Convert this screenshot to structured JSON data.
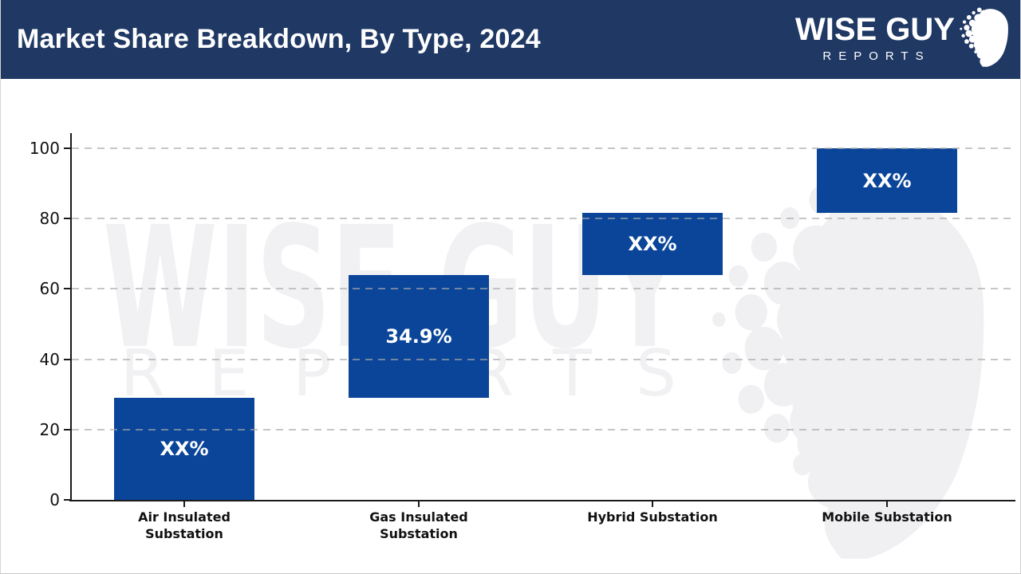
{
  "header": {
    "title": "Market Share Breakdown, By Type, 2024",
    "bg_color": "#1f3864",
    "logo": {
      "line1": "WISE GUY",
      "line2": "REPORTS"
    }
  },
  "watermark": {
    "line1": "WISE GUY",
    "line2": "REPORTS"
  },
  "chart_data": {
    "type": "bar",
    "subtype": "waterfall-floating-bars",
    "title": "Market Share Breakdown, By Type, 2024",
    "categories": [
      "Air Insulated Substation",
      "Gas Insulated Substation",
      "Hybrid Substation",
      "Mobile Substation"
    ],
    "category_lines": [
      [
        "Air Insulated",
        "Substation"
      ],
      [
        "Gas Insulated",
        "Substation"
      ],
      [
        "Hybrid Substation"
      ],
      [
        "Mobile Substation"
      ]
    ],
    "series": [
      {
        "name": "Market share segment",
        "starts": [
          0,
          29.1,
          64,
          81.6
        ],
        "ends": [
          29.1,
          64,
          81.6,
          100
        ],
        "labels": [
          "XX%",
          "34.9%",
          "XX%",
          "XX%"
        ]
      }
    ],
    "xlabel": "",
    "ylabel": "",
    "ylim": [
      0,
      100
    ],
    "yticks": [
      0,
      20,
      40,
      60,
      80,
      100
    ],
    "grid": "horizontal-dashed",
    "legend": "none",
    "bar_color": "#0b4599",
    "bar_label_color": "#ffffff"
  }
}
